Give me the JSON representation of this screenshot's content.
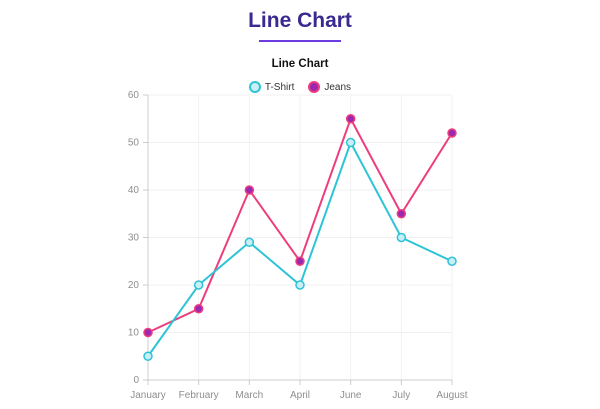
{
  "page": {
    "title": "Line Chart",
    "title_color": "#392a8f",
    "underline_color": "#6c3ce0"
  },
  "chart": {
    "title": "Line Chart",
    "legend_items": [
      {
        "label": "T-Shirt"
      },
      {
        "label": "Jeans"
      }
    ]
  },
  "chart_data": {
    "type": "line",
    "title": "Line Chart",
    "categories": [
      "January",
      "February",
      "March",
      "April",
      "June",
      "July",
      "August"
    ],
    "series": [
      {
        "name": "T-Shirt",
        "values": [
          5,
          20,
          29,
          20,
          50,
          30,
          25
        ],
        "line_color": "#2ec4d6",
        "marker_fill": "#c9eef6"
      },
      {
        "name": "Jeans",
        "values": [
          10,
          15,
          40,
          25,
          55,
          35,
          52
        ],
        "line_color": "#ee3d7c",
        "marker_fill": "#9c27b0"
      }
    ],
    "xlabel": "",
    "ylabel": "",
    "ylim": [
      0,
      60
    ],
    "ytick": 10,
    "grid": true,
    "legend_position": "top"
  }
}
